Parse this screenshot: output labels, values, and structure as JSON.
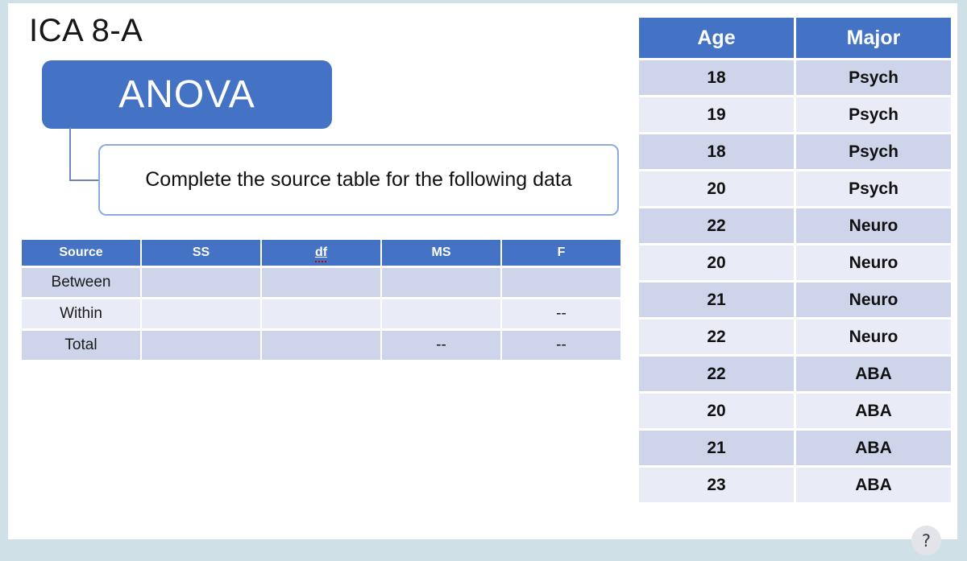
{
  "slide": {
    "title": "ICA 8-A",
    "anova_label": "ANOVA",
    "callout_text": "Complete the source table for the following data"
  },
  "source_table": {
    "headers": [
      "Source",
      "SS",
      "df",
      "MS",
      "F"
    ],
    "rows": [
      {
        "cells": [
          "Between",
          "",
          "",
          "",
          ""
        ]
      },
      {
        "cells": [
          "Within",
          "",
          "",
          "",
          "--"
        ]
      },
      {
        "cells": [
          "Total",
          "",
          "",
          "--",
          "--"
        ]
      }
    ]
  },
  "data_table": {
    "headers": [
      "Age",
      "Major"
    ],
    "rows": [
      [
        "18",
        "Psych"
      ],
      [
        "19",
        "Psych"
      ],
      [
        "18",
        "Psych"
      ],
      [
        "20",
        "Psych"
      ],
      [
        "22",
        "Neuro"
      ],
      [
        "20",
        "Neuro"
      ],
      [
        "21",
        "Neuro"
      ],
      [
        "22",
        "Neuro"
      ],
      [
        "22",
        "ABA"
      ],
      [
        "20",
        "ABA"
      ],
      [
        "21",
        "ABA"
      ],
      [
        "23",
        "ABA"
      ]
    ]
  },
  "help_button": {
    "label": "?"
  },
  "colors": {
    "accent_blue": "#4472C4",
    "row_band_dark": "#CED5EA",
    "row_band_light": "#E9EBF6",
    "background_teal": "#CFE1E6",
    "callout_border": "#8FAADC",
    "connector": "#6E87B8",
    "spellcheck_red": "#C00000"
  }
}
